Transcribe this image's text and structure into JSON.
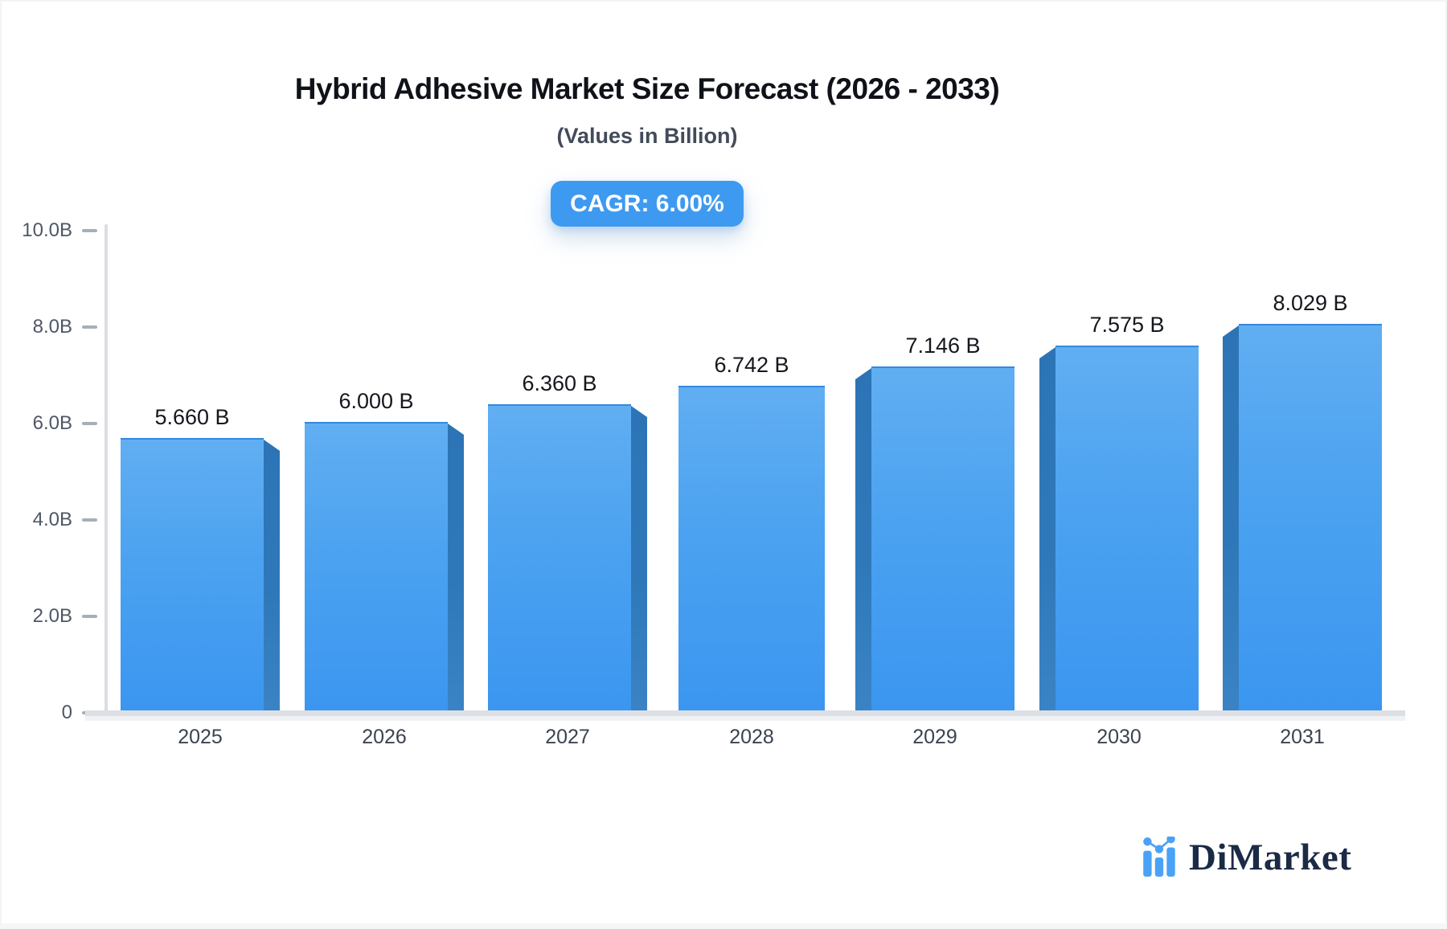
{
  "header": {
    "title": "Hybrid Adhesive Market Size Forecast (2026 - 2033)",
    "subtitle": "(Values in Billion)",
    "cagr_badge": "CAGR: 6.00%"
  },
  "chart_data": {
    "type": "bar",
    "title": "Hybrid Adhesive Market Size Forecast (2026 - 2033)",
    "subtitle": "(Values in Billion)",
    "categories": [
      "2025",
      "2026",
      "2027",
      "2028",
      "2029",
      "2030",
      "2031"
    ],
    "values": [
      5.66,
      6.0,
      6.36,
      6.742,
      7.146,
      7.575,
      8.029
    ],
    "value_labels": [
      "5.660 B",
      "6.000 B",
      "6.360 B",
      "6.742 B",
      "7.146 B",
      "7.575 B",
      "8.029 B"
    ],
    "xlabel": "",
    "ylabel": "",
    "ylim": [
      0,
      10
    ],
    "ytick_labels": [
      "10.0B",
      "8.0B",
      "6.0B",
      "4.0B",
      "2.0B",
      "0"
    ],
    "grid": false,
    "legend": false,
    "bar_color": "#3b96f0",
    "bar_side_color": "#2e78ba",
    "cagr": "6.00%"
  },
  "watermark": {
    "brand": "DiMarket",
    "icon": "dimarket-chart-logo-icon",
    "icon_color": "#4aa2f6",
    "text_color": "#1b2a45"
  },
  "colors": {
    "badge_bg": "#3e9af0",
    "axis_line": "#dadee3",
    "tick_text": "#4e5766",
    "title_text": "#0f1218"
  }
}
